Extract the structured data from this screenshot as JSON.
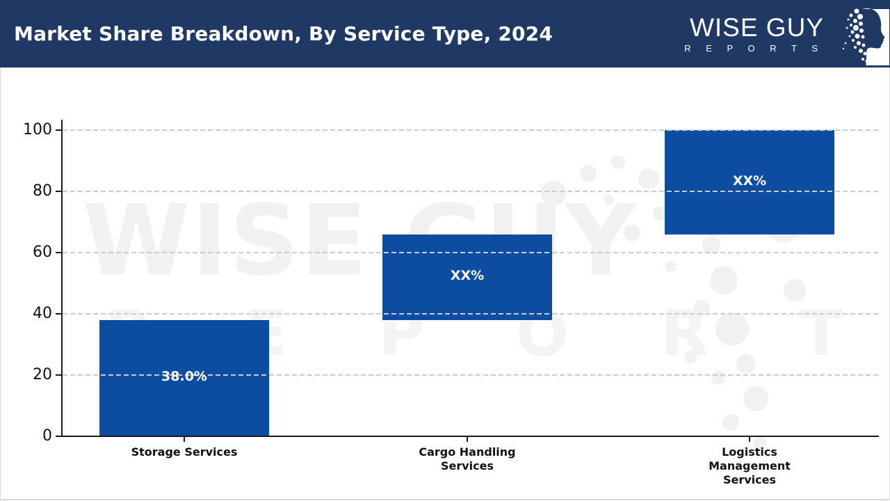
{
  "header": {
    "title": "Market Share Breakdown, By Service Type, 2024",
    "logo": {
      "primary": "WISE GUY",
      "secondary": "R E P O R T S"
    }
  },
  "watermark": {
    "primary": "WISE GUY",
    "secondary": "R E P O R T S"
  },
  "colors": {
    "header_bg": "#1f3864",
    "bar": "#0c4da2",
    "bar_label": "#ffffff",
    "axis": "#1a1a1a",
    "grid": "#cccccc",
    "card_border": "#d9d9d9",
    "watermark": "#f1f1f1"
  },
  "chart_data": {
    "type": "bar",
    "variant": "waterfall",
    "title": "Market Share Breakdown, By Service Type, 2024",
    "ylim": [
      0,
      100
    ],
    "yticks": [
      0,
      20,
      40,
      60,
      80,
      100
    ],
    "grid": "horizontal-dashed",
    "legend": "none",
    "categories": [
      {
        "name": "Storage Services",
        "label_lines": [
          "Storage Services"
        ],
        "start": 0,
        "end": 38,
        "value": 38,
        "bar_label": "38.0%"
      },
      {
        "name": "Cargo Handling Services",
        "label_lines": [
          "Cargo Handling",
          "Services"
        ],
        "start": 38,
        "end": 66,
        "value": 28,
        "bar_label": "XX%"
      },
      {
        "name": "Logistics Management Services",
        "label_lines": [
          "Logistics",
          "Management",
          "Services"
        ],
        "start": 66,
        "end": 100,
        "value": 34,
        "bar_label": "XX%"
      }
    ]
  }
}
